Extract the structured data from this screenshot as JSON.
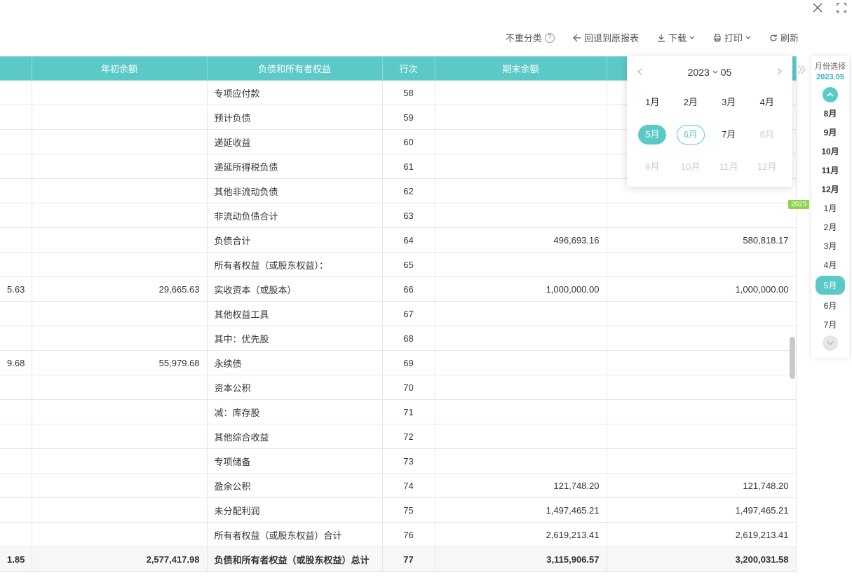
{
  "colors": {
    "accent": "#5cc9c9",
    "header_border": "#8fd9d9",
    "grid": "#e6e6e6",
    "text": "#333333",
    "muted": "#cccccc",
    "badge": "#8bd34a"
  },
  "toolbar": {
    "noreclass": "不重分类",
    "revert": "回退到原报表",
    "download": "下载",
    "print": "打印",
    "refresh": "刷新"
  },
  "table": {
    "headers": {
      "beginning": "年初余额",
      "liab_equity": "负债和所有者权益",
      "line": "行次",
      "ending": "期末余额"
    },
    "rows": [
      {
        "left1": "",
        "left2": "",
        "item": "专项应付款",
        "indent": 1,
        "line": "58",
        "end": "",
        "begin2": ""
      },
      {
        "left1": "",
        "left2": "",
        "item": "预计负债",
        "indent": 1,
        "line": "59",
        "end": "",
        "begin2": ""
      },
      {
        "left1": "",
        "left2": "",
        "item": "递延收益",
        "indent": 1,
        "line": "60",
        "end": "",
        "begin2": ""
      },
      {
        "left1": "",
        "left2": "",
        "item": "递延所得税负债",
        "indent": 1,
        "line": "61",
        "end": "",
        "begin2": ""
      },
      {
        "left1": "",
        "left2": "",
        "item": "其他非流动负债",
        "indent": 1,
        "line": "62",
        "end": "",
        "begin2": ""
      },
      {
        "left1": "",
        "left2": "",
        "item": "非流动负债合计",
        "indent": 2,
        "line": "63",
        "end": "",
        "begin2": ""
      },
      {
        "left1": "",
        "left2": "",
        "item": "负债合计",
        "indent": 0,
        "line": "64",
        "end": "496,693.16",
        "begin2": "580,818.17"
      },
      {
        "left1": "",
        "left2": "",
        "item": "所有者权益（或股东权益）：",
        "indent": 0,
        "line": "65",
        "end": "",
        "begin2": ""
      },
      {
        "left1": "5.63",
        "left2": "29,665.63",
        "item": "实收资本（或股本）",
        "indent": 1,
        "line": "66",
        "end": "1,000,000.00",
        "begin2": "1,000,000.00"
      },
      {
        "left1": "",
        "left2": "",
        "item": "其他权益工具",
        "indent": 1,
        "line": "67",
        "end": "",
        "begin2": ""
      },
      {
        "left1": "",
        "left2": "",
        "item": "其中：优先股",
        "indent": 2,
        "line": "68",
        "end": "",
        "begin2": ""
      },
      {
        "left1": "9.68",
        "left2": "55,979.68",
        "item": "永续债",
        "indent": 2,
        "line": "69",
        "end": "",
        "begin2": ""
      },
      {
        "left1": "",
        "left2": "",
        "item": "资本公积",
        "indent": 1,
        "line": "70",
        "end": "",
        "begin2": ""
      },
      {
        "left1": "",
        "left2": "",
        "item": "减：库存股",
        "indent": 1,
        "line": "71",
        "end": "",
        "begin2": ""
      },
      {
        "left1": "",
        "left2": "",
        "item": "其他综合收益",
        "indent": 1,
        "line": "72",
        "end": "",
        "begin2": ""
      },
      {
        "left1": "",
        "left2": "",
        "item": "专项储备",
        "indent": 1,
        "line": "73",
        "end": "",
        "begin2": ""
      },
      {
        "left1": "",
        "left2": "",
        "item": "盈余公积",
        "indent": 1,
        "line": "74",
        "end": "121,748.20",
        "begin2": "121,748.20"
      },
      {
        "left1": "",
        "left2": "",
        "item": "未分配利润",
        "indent": 1,
        "line": "75",
        "end": "1,497,465.21",
        "begin2": "1,497,465.21"
      },
      {
        "left1": "",
        "left2": "",
        "item": "所有者权益（或股东权益）合计",
        "indent": 0,
        "line": "76",
        "end": "2,619,213.41",
        "begin2": "2,619,213.41"
      },
      {
        "left1": "1.85",
        "left2": "2,577,417.98",
        "item": "负债和所有者权益（或股东权益）总计",
        "indent": 0,
        "line": "77",
        "end": "3,115,906.57",
        "begin2": "3,200,031.58",
        "total": true
      }
    ],
    "col_widths": [
      "45",
      "250",
      "250",
      "75",
      "245",
      "270"
    ]
  },
  "datepicker": {
    "year": "2023",
    "month": "05",
    "months": [
      {
        "label": "1月",
        "state": ""
      },
      {
        "label": "2月",
        "state": ""
      },
      {
        "label": "3月",
        "state": ""
      },
      {
        "label": "4月",
        "state": ""
      },
      {
        "label": "5月",
        "state": "selected"
      },
      {
        "label": "6月",
        "state": "outlined"
      },
      {
        "label": "7月",
        "state": ""
      },
      {
        "label": "8月",
        "state": "disabled"
      },
      {
        "label": "9月",
        "state": "disabled"
      },
      {
        "label": "10月",
        "state": "disabled"
      },
      {
        "label": "11月",
        "state": "disabled"
      },
      {
        "label": "12月",
        "state": "disabled"
      }
    ]
  },
  "monthpanel": {
    "title": "月份选择",
    "current": "2023.05",
    "items": [
      {
        "label": "8月",
        "bold": true
      },
      {
        "label": "9月",
        "bold": true
      },
      {
        "label": "10月",
        "bold": true
      },
      {
        "label": "11月",
        "bold": true
      },
      {
        "label": "12月",
        "bold": true
      },
      {
        "label": "1月",
        "year": "2023"
      },
      {
        "label": "2月"
      },
      {
        "label": "3月"
      },
      {
        "label": "4月"
      },
      {
        "label": "5月",
        "active": true
      },
      {
        "label": "6月"
      },
      {
        "label": "7月"
      }
    ]
  }
}
